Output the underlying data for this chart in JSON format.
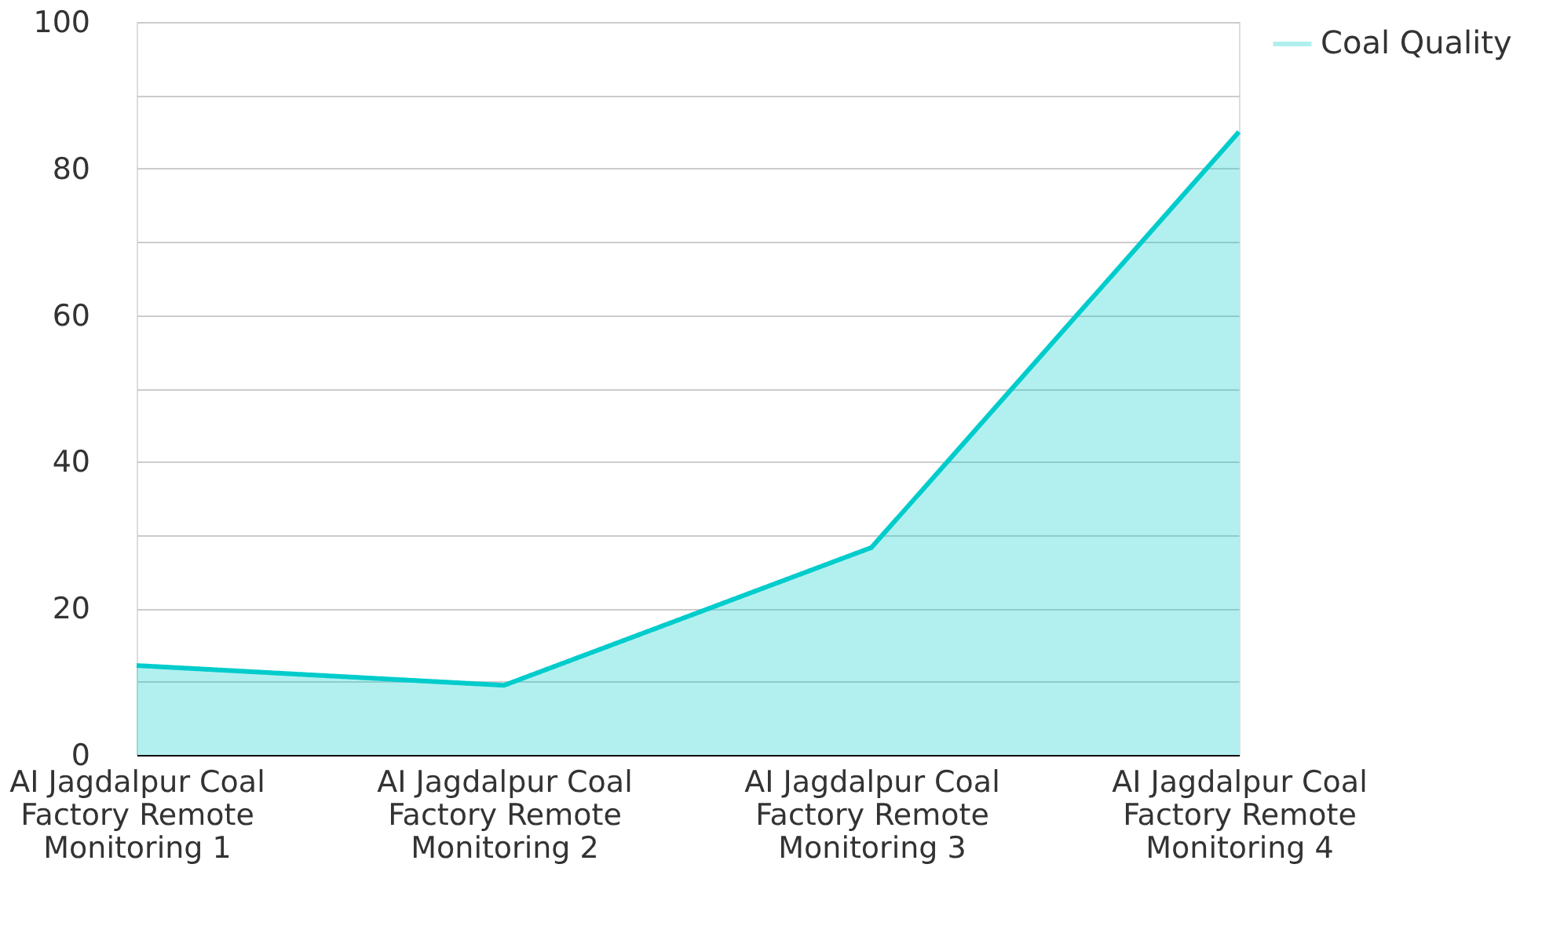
{
  "chart_data": {
    "type": "area",
    "categories": [
      "AI Jagdalpur Coal Factory Remote Monitoring 1",
      "AI Jagdalpur Coal Factory Remote Monitoring 2",
      "AI Jagdalpur Coal Factory Remote Monitoring 3",
      "AI Jagdalpur Coal Factory Remote Monitoring 4"
    ],
    "series": [
      {
        "name": "Coal Quality",
        "color": "#00cccc",
        "values": [
          12.2,
          9.5,
          28.3,
          85
        ]
      }
    ],
    "ylim": [
      0,
      100
    ],
    "yticks": [
      0,
      {
        "value": 10,
        "label": null
      },
      20,
      {
        "value": 30,
        "label": null
      },
      40,
      {
        "value": 50,
        "label": null
      },
      60,
      {
        "value": 70,
        "label": null
      },
      80,
      {
        "value": 90,
        "label": null
      },
      100
    ],
    "grid": "y",
    "legend": "top right",
    "marker": "none",
    "line_style": "solid"
  }
}
